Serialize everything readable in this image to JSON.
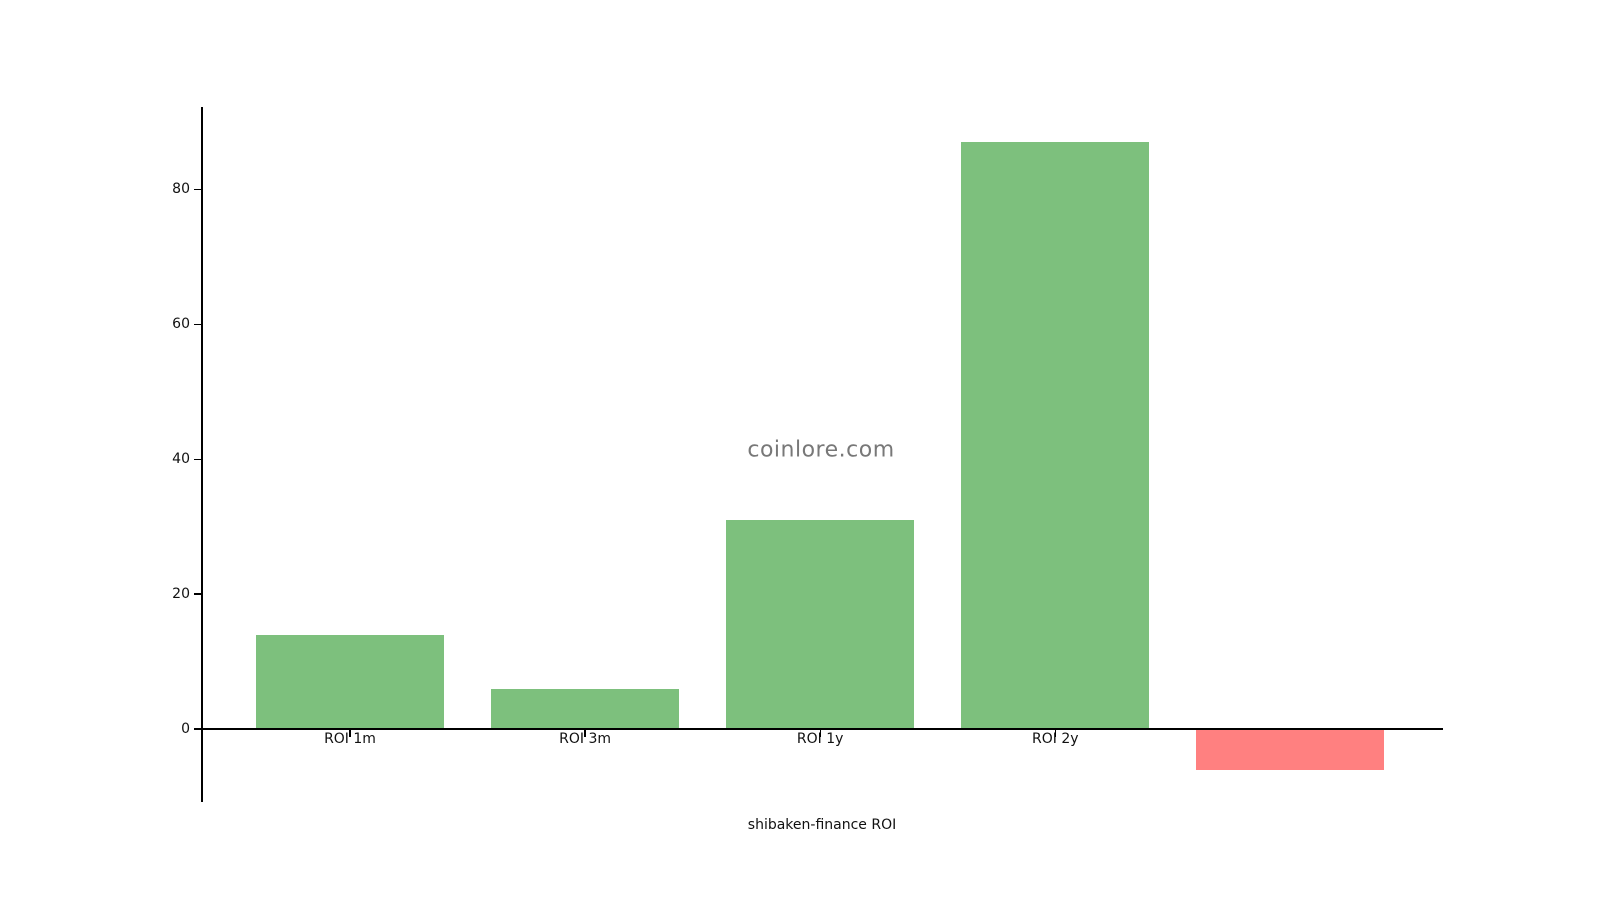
{
  "watermark": "coinlore.com",
  "chart_data": {
    "type": "bar",
    "title": "shibaken-finance ROI",
    "categories": [
      "ROI 1m",
      "ROI 3m",
      "ROI 1y",
      "ROI 2y",
      ""
    ],
    "values": [
      14,
      6,
      31,
      87,
      -6
    ],
    "yticks": [
      0,
      20,
      40,
      60,
      80
    ],
    "ylim": [
      -10.8,
      92.2
    ],
    "xlabel": "",
    "ylabel": "",
    "grid": false,
    "legend": false,
    "positive_color": "#7dc07d",
    "negative_color": "#ff8080",
    "axis_color": "#000000",
    "tick_label_color": "#111111",
    "watermark_color": "#787878"
  }
}
